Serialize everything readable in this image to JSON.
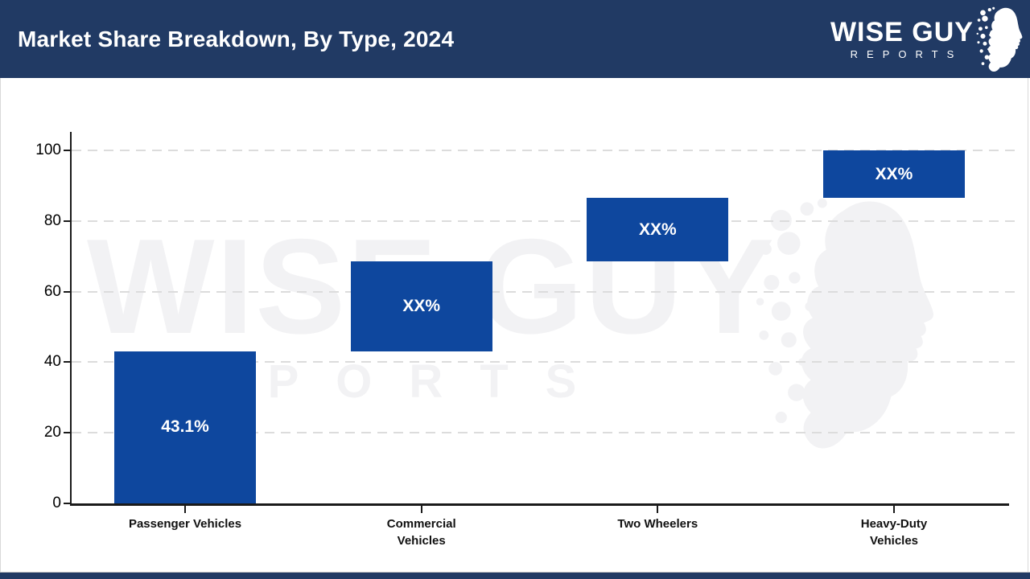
{
  "header": {
    "title": "Market Share Breakdown, By Type, 2024",
    "logo": {
      "name": "WISE GUY",
      "sub": "REPORTS"
    }
  },
  "watermark": {
    "line1": "WISE GUY",
    "line2": "REPORTS"
  },
  "chart_data": {
    "type": "bar",
    "subtype": "floating-waterfall",
    "title": "Market Share Breakdown, By Type, 2024",
    "categories": [
      "Passenger Vehicles",
      "Commercial\nVehicles",
      "Two Wheelers",
      "Heavy-Duty\nVehicles"
    ],
    "segments": [
      {
        "category": "Passenger Vehicles",
        "start": 0,
        "end": 43.1,
        "label": "43.1%"
      },
      {
        "category": "Commercial Vehicles",
        "start": 43.1,
        "end": 68.6,
        "label": "XX%"
      },
      {
        "category": "Two Wheelers",
        "start": 68.6,
        "end": 86.5,
        "label": "XX%"
      },
      {
        "category": "Heavy-Duty Vehicles",
        "start": 86.5,
        "end": 100,
        "label": "XX%"
      }
    ],
    "yticks": [
      0,
      20,
      40,
      60,
      80,
      100
    ],
    "ylim": [
      0,
      105
    ],
    "xlabel": "",
    "ylabel": "",
    "grid": "horizontal-dashed",
    "legend": "none",
    "colors": {
      "bar": "#0e479e",
      "bar_label": "#ffffff",
      "grid": "#dcdcdc",
      "axis": "#1a1a1a",
      "header_bg": "#213a64",
      "watermark": "#f2f2f4"
    }
  }
}
